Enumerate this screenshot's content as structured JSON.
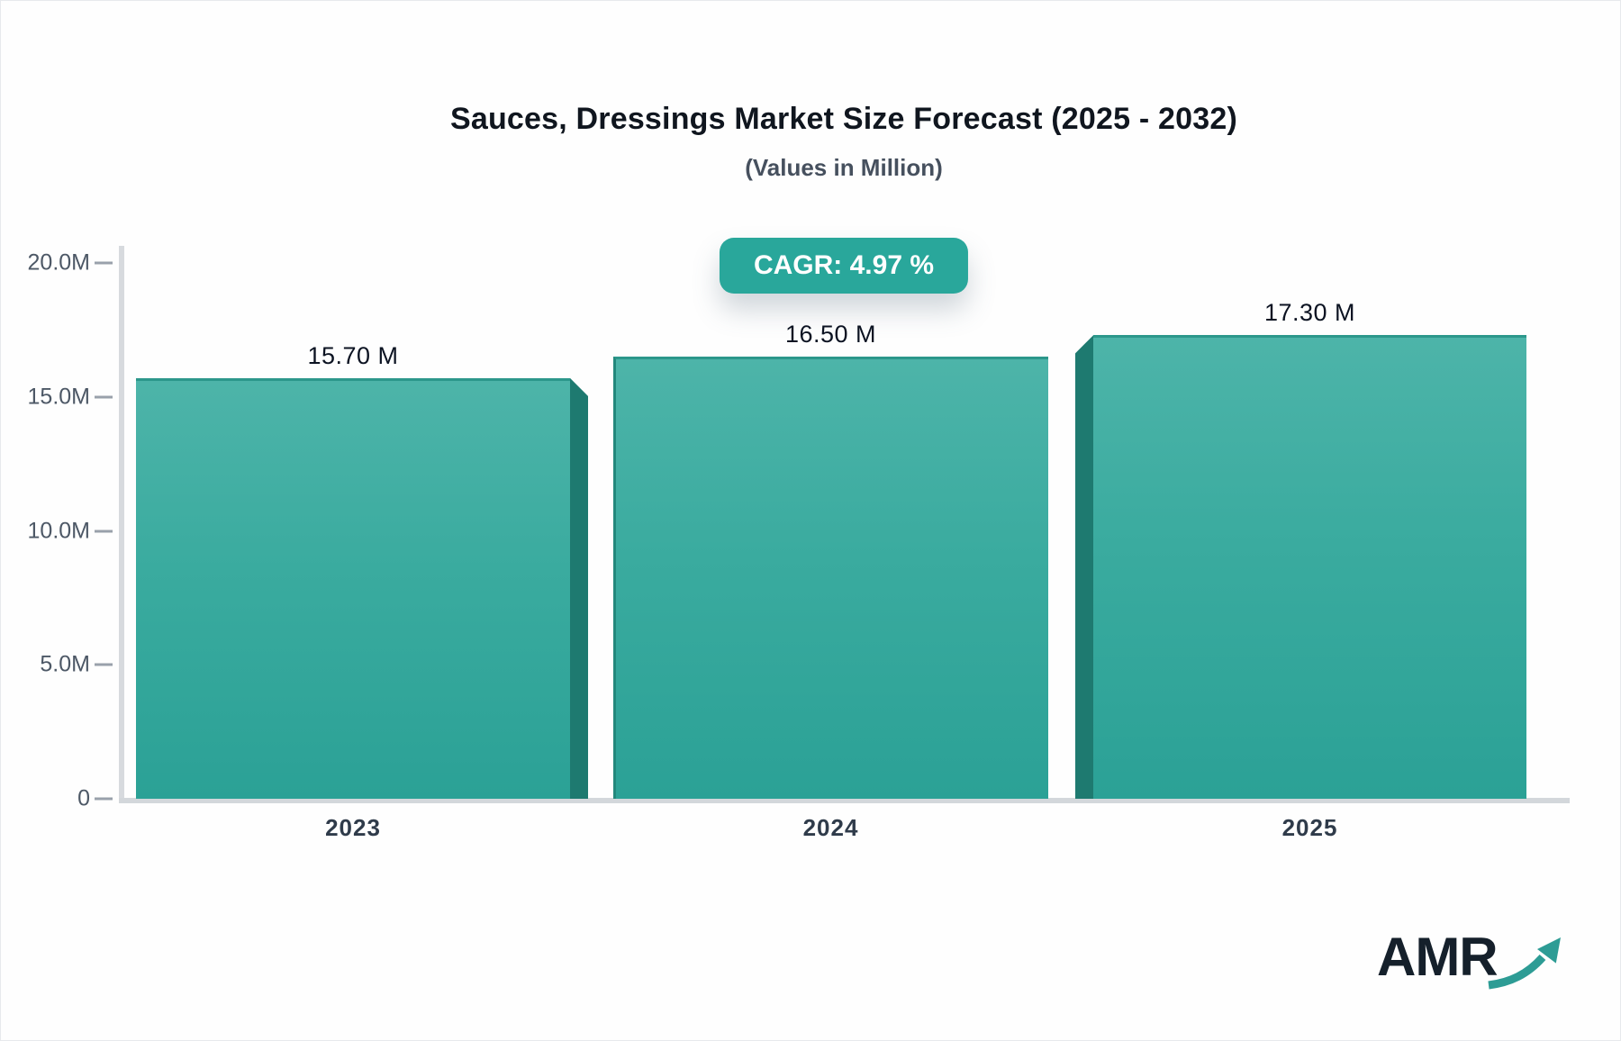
{
  "chart_data": {
    "type": "bar",
    "title": "Sauces, Dressings Market Size Forecast (2025 - 2032)",
    "subtitle": "(Values in Million)",
    "annotation": "CAGR: 4.97 %",
    "categories": [
      "2023",
      "2024",
      "2025"
    ],
    "values": [
      15.7,
      16.5,
      17.3
    ],
    "value_labels": [
      "15.70 M",
      "16.50 M",
      "17.30 M"
    ],
    "unit": "Million",
    "ylim": [
      0,
      20
    ],
    "yticks": [
      0,
      5,
      10,
      15,
      20
    ],
    "ytick_labels": [
      "0",
      "5.0M",
      "10.0M",
      "15.0M",
      "20.0M"
    ],
    "grid": false,
    "legend": false,
    "bar_color_top": "#4db4a9",
    "bar_color_bottom": "#2ba196",
    "bar_side_color": "#1e7a70",
    "accent_color": "#29a79b"
  },
  "footer": {
    "logo_text": "AMR"
  }
}
